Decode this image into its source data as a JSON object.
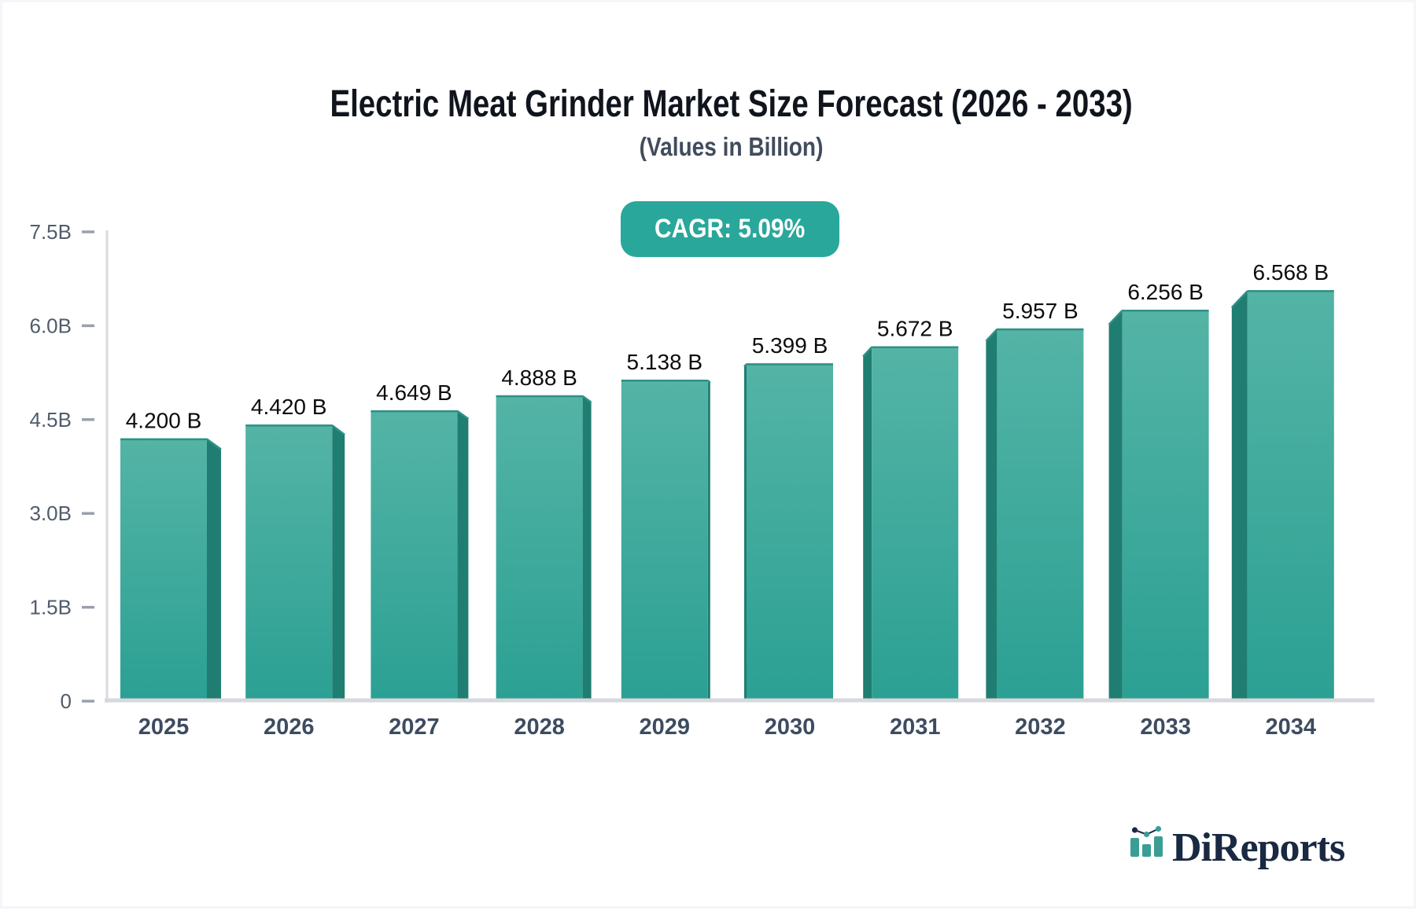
{
  "header": {
    "title": "Electric Meat Grinder Market Size Forecast (2026 - 2033)",
    "subtitle": "(Values in Billion)"
  },
  "badge": {
    "label": "CAGR: 5.09%"
  },
  "chart_data": {
    "type": "bar",
    "title": "Electric Meat Grinder Market Size Forecast (2026 - 2033)",
    "subtitle": "(Values in Billion)",
    "cagr": "5.09%",
    "unit": "Billion",
    "categories": [
      "2025",
      "2026",
      "2027",
      "2028",
      "2029",
      "2030",
      "2031",
      "2032",
      "2033",
      "2034"
    ],
    "values": [
      4.2,
      4.42,
      4.649,
      4.888,
      5.138,
      5.399,
      5.672,
      5.957,
      6.256,
      6.568
    ],
    "value_labels": [
      "4.200 B",
      "4.420 B",
      "4.649 B",
      "4.888 B",
      "5.138 B",
      "5.399 B",
      "5.672 B",
      "5.957 B",
      "6.256 B",
      "6.568 B"
    ],
    "ylim": [
      0,
      7.5
    ],
    "yticks": [
      {
        "v": 0,
        "label": "0"
      },
      {
        "v": 1.5,
        "label": "1.5B"
      },
      {
        "v": 3.0,
        "label": "3.0B"
      },
      {
        "v": 4.5,
        "label": "4.5B"
      },
      {
        "v": 6.0,
        "label": "6.0B"
      },
      {
        "v": 7.5,
        "label": "7.5B"
      }
    ],
    "grid": "off",
    "legend": "none",
    "colors": {
      "bar_top": "#54b4a6",
      "bar_bottom": "#2ba093",
      "bar_side": "#1f7d71",
      "bar_top_edge": "#2f9184",
      "badge_bg": "#2aa79b",
      "badge_text": "#ffffff",
      "axis_line": "#d9dbdf",
      "baseline": "#d6d8dc",
      "tick_dash": "#9aa0ab",
      "tick_label": "#515c6b",
      "x_label": "#3d4c60",
      "value_label": "#0d0d0d",
      "title": "#10141c",
      "subtitle": "#414c5c"
    }
  },
  "logo": {
    "brand": "DiReports",
    "icon": "bar-chart-logo-icon",
    "navy": "#1a2942",
    "teal": "#3a9e96"
  }
}
